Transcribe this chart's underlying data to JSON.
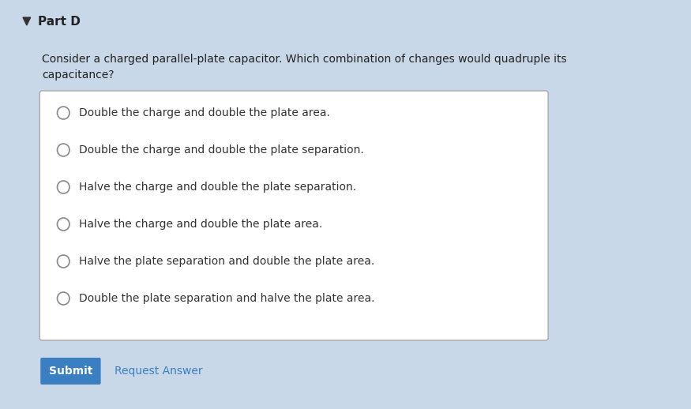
{
  "part_label": "Part D",
  "question": "Consider a charged parallel-plate capacitor. Which combination of changes would quadruple its\ncapacitance?",
  "options": [
    "Double the charge and double the plate area.",
    "Double the charge and double the plate separation.",
    "Halve the charge and double the plate separation.",
    "Halve the charge and double the plate area.",
    "Halve the plate separation and double the plate area.",
    "Double the plate separation and halve the plate area."
  ],
  "bg_color": "#c8d8e8",
  "box_color": "#ffffff",
  "box_edge_color": "#aaaaaa",
  "part_label_color": "#222222",
  "question_color": "#222222",
  "option_color": "#333333",
  "circle_color": "#888888",
  "submit_bg": "#3a7fc1",
  "submit_text_color": "#ffffff",
  "request_answer_color": "#3a7fc1",
  "triangle_color": "#333333",
  "font_size_part": 11,
  "font_size_question": 10,
  "font_size_option": 10,
  "font_size_button": 10
}
